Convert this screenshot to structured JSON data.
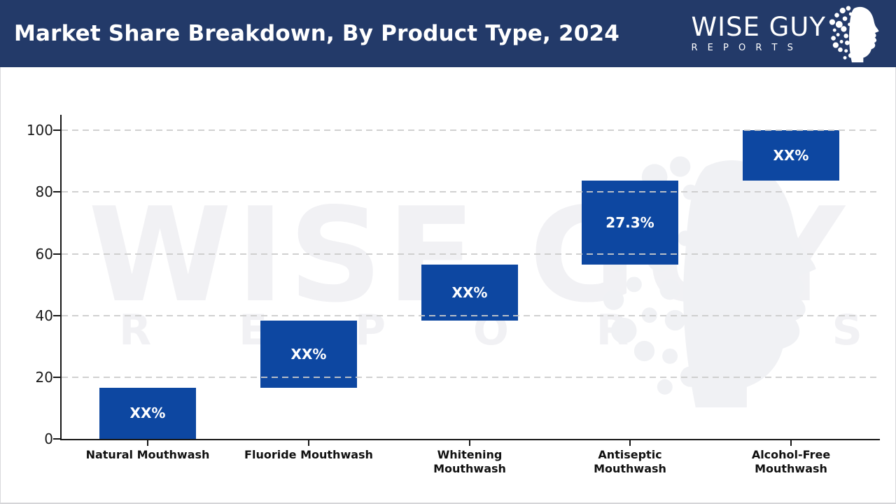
{
  "header": {
    "title": "Market Share Breakdown, By Product Type, 2024",
    "logo_line1": "WISE GUY",
    "logo_line2": "R E P O R T S"
  },
  "watermark": {
    "line1": "WISE GUY",
    "line2": "R E P O R T S"
  },
  "colors": {
    "header_bg": "#233A69",
    "bar": "#0D47A1",
    "bar_label": "#FFFFFF",
    "grid": "#CBCBCB",
    "axis": "#161616"
  },
  "chart_data": {
    "type": "bar",
    "subtype": "waterfall",
    "title": "Market Share Breakdown, By Product Type, 2024",
    "categories": [
      [
        "Natural Mouthwash"
      ],
      [
        "Fluoride Mouthwash"
      ],
      [
        "Whitening",
        "Mouthwash"
      ],
      [
        "Antiseptic",
        "Mouthwash"
      ],
      [
        "Alcohol-Free",
        "Mouthwash"
      ]
    ],
    "values": [
      16.6,
      21.7,
      18.1,
      27.3,
      16.3
    ],
    "cumulative_starts": [
      0,
      16.6,
      38.3,
      56.4,
      83.7
    ],
    "bar_labels": [
      "XX%",
      "XX%",
      "XX%",
      "27.3%",
      "XX%"
    ],
    "ylim": [
      0,
      100
    ],
    "yticks": [
      0,
      20,
      40,
      60,
      80,
      100
    ],
    "grid": "horizontal-dashed",
    "legend": "none",
    "xlabel": "",
    "ylabel": ""
  }
}
